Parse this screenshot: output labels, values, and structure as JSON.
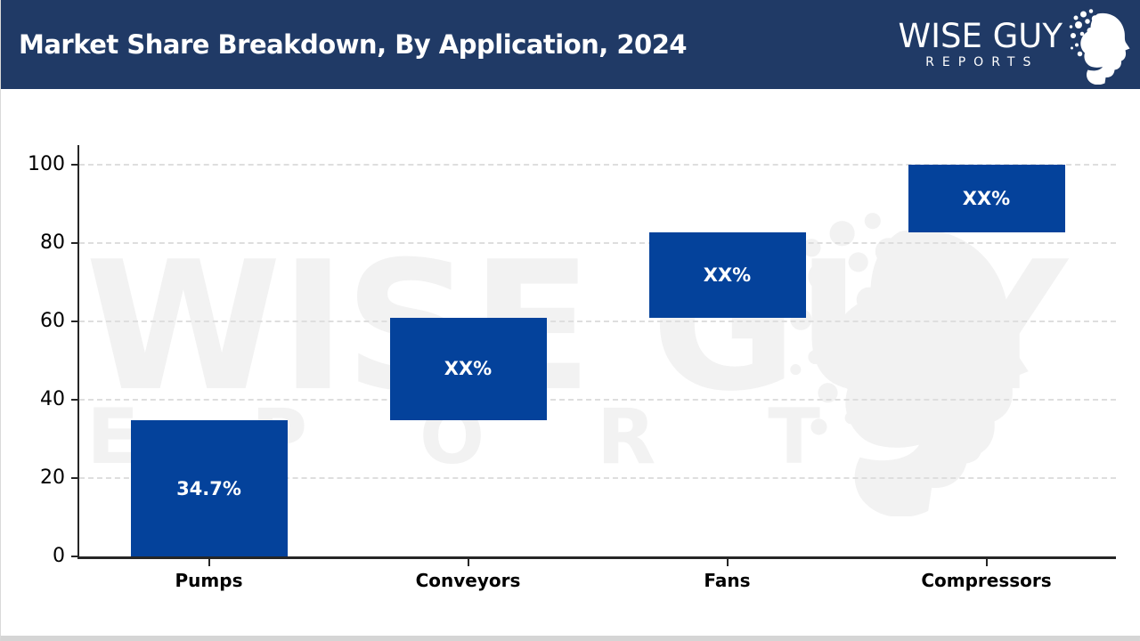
{
  "header": {
    "title": "Market Share Breakdown, By Application, 2024",
    "brand": {
      "name": "WISE GUY",
      "subtitle": "REPORTS"
    }
  },
  "watermark": {
    "line1": "WISE GUY",
    "line2": "R E P O R T S"
  },
  "chart_data": {
    "type": "bar",
    "variant": "waterfall",
    "title": "Market Share Breakdown, By Application, 2024",
    "categories": [
      "Pumps",
      "Conveyors",
      "Fans",
      "Compressors"
    ],
    "bars": [
      {
        "category": "Pumps",
        "start": 0,
        "end": 34.7,
        "value": 34.7,
        "label": "34.7%"
      },
      {
        "category": "Conveyors",
        "start": 34.7,
        "end": 61.0,
        "value": 26.3,
        "label": "XX%"
      },
      {
        "category": "Fans",
        "start": 61.0,
        "end": 82.8,
        "value": 21.8,
        "label": "XX%"
      },
      {
        "category": "Compressors",
        "start": 82.8,
        "end": 100.0,
        "value": 17.2,
        "label": "XX%"
      }
    ],
    "yticks": [
      0,
      20,
      40,
      60,
      80,
      100
    ],
    "ylim": [
      0,
      105
    ],
    "xlabel": "",
    "ylabel": "",
    "grid": "dashed-horizontal",
    "legend": "none"
  },
  "colors": {
    "header_bg": "#203a66",
    "bar": "#04429b",
    "bar_label": "#ffffff",
    "grid": "#dedede",
    "axis": "#262626",
    "text": "#000000",
    "watermark": "#f2f2f2",
    "title_text": "#ffffff"
  }
}
